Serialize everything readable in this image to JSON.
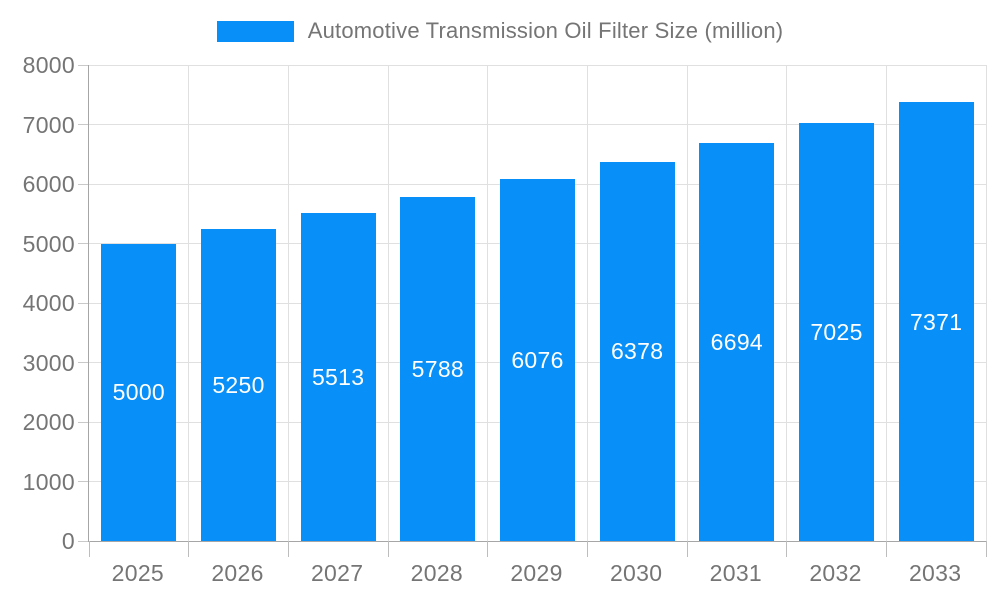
{
  "chart_data": {
    "type": "bar",
    "title": "Automotive Transmission Oil Filter Size (million)",
    "categories": [
      "2025",
      "2026",
      "2027",
      "2028",
      "2029",
      "2030",
      "2031",
      "2032",
      "2033"
    ],
    "values": [
      5000,
      5250,
      5513,
      5788,
      6076,
      6378,
      6694,
      7025,
      7371
    ],
    "xlabel": "",
    "ylabel": "",
    "ylim": [
      0,
      8000
    ],
    "yticks": [
      0,
      1000,
      2000,
      3000,
      4000,
      5000,
      6000,
      7000,
      8000
    ],
    "grid": true,
    "legend_position": "top",
    "bar_labels_visible": true
  },
  "style": {
    "bar_color": "#0990f8",
    "bar_label_color": "#ffffff",
    "grid_color": "#e0e0e0",
    "axis_color": "#a6a6a6",
    "tick_color": "#c9c9c9",
    "x_tick_color": "#bdbdbd",
    "text_color": "#757575",
    "background": "#ffffff"
  }
}
